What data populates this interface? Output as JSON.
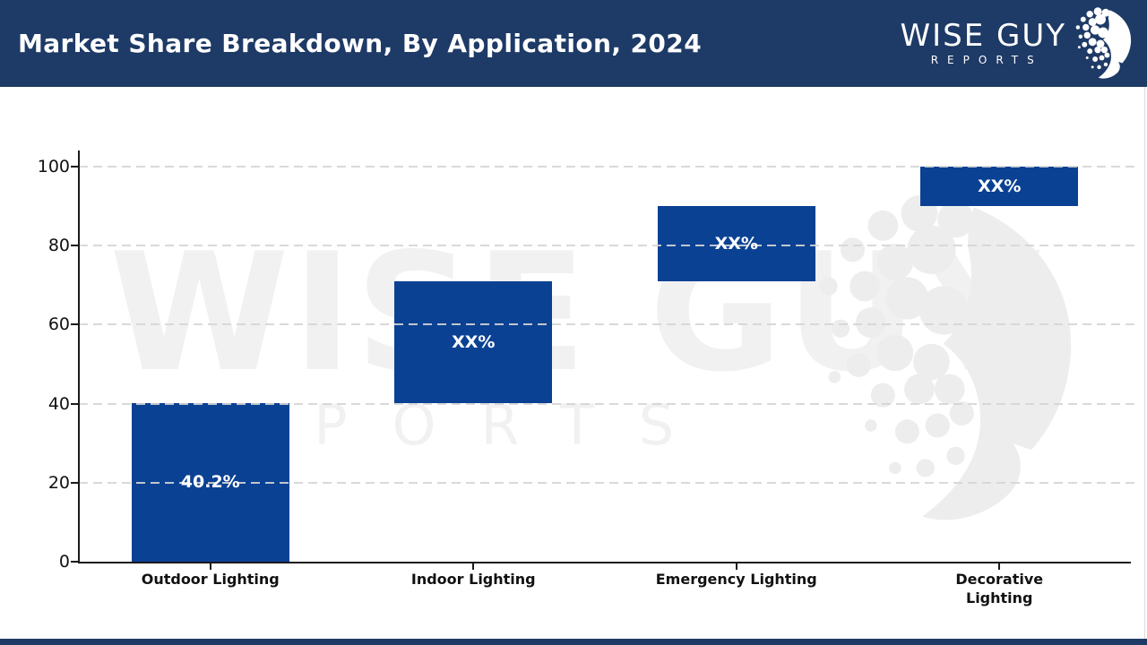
{
  "header": {
    "title": "Market Share Breakdown, By Application, 2024",
    "bg_color": "#1e3a66",
    "logo": {
      "line1": "WISE GUY",
      "line2": "REPORTS"
    }
  },
  "watermark": {
    "line1": "WISE GUY",
    "line2": "REPORTS"
  },
  "chart_data": {
    "type": "bar",
    "variant": "floating-waterfall-segments",
    "title": "Market Share Breakdown, By Application, 2024",
    "categories": [
      "Outdoor Lighting",
      "Indoor Lighting",
      "Emergency Lighting",
      "Decorative Lighting"
    ],
    "category_display_labels": [
      "Outdoor Lighting",
      "Indoor Lighting",
      "Emergency Lighting",
      "Decorative\nLighting"
    ],
    "segments": [
      {
        "category": "Outdoor Lighting",
        "start": 0,
        "end": 40.2,
        "label": "40.2%"
      },
      {
        "category": "Indoor Lighting",
        "start": 40.2,
        "end": 71,
        "label": "XX%"
      },
      {
        "category": "Emergency Lighting",
        "start": 71,
        "end": 90,
        "label": "XX%"
      },
      {
        "category": "Decorative Lighting",
        "start": 90,
        "end": 100,
        "label": "XX%"
      }
    ],
    "xlabel": "",
    "ylabel": "",
    "ylim": [
      0,
      100
    ],
    "yticks": [
      0,
      20,
      40,
      60,
      80,
      100
    ],
    "grid": "horizontal-dashed",
    "legend": "none",
    "bar_color": "#0a4193",
    "bar_label_color": "#ffffff"
  }
}
